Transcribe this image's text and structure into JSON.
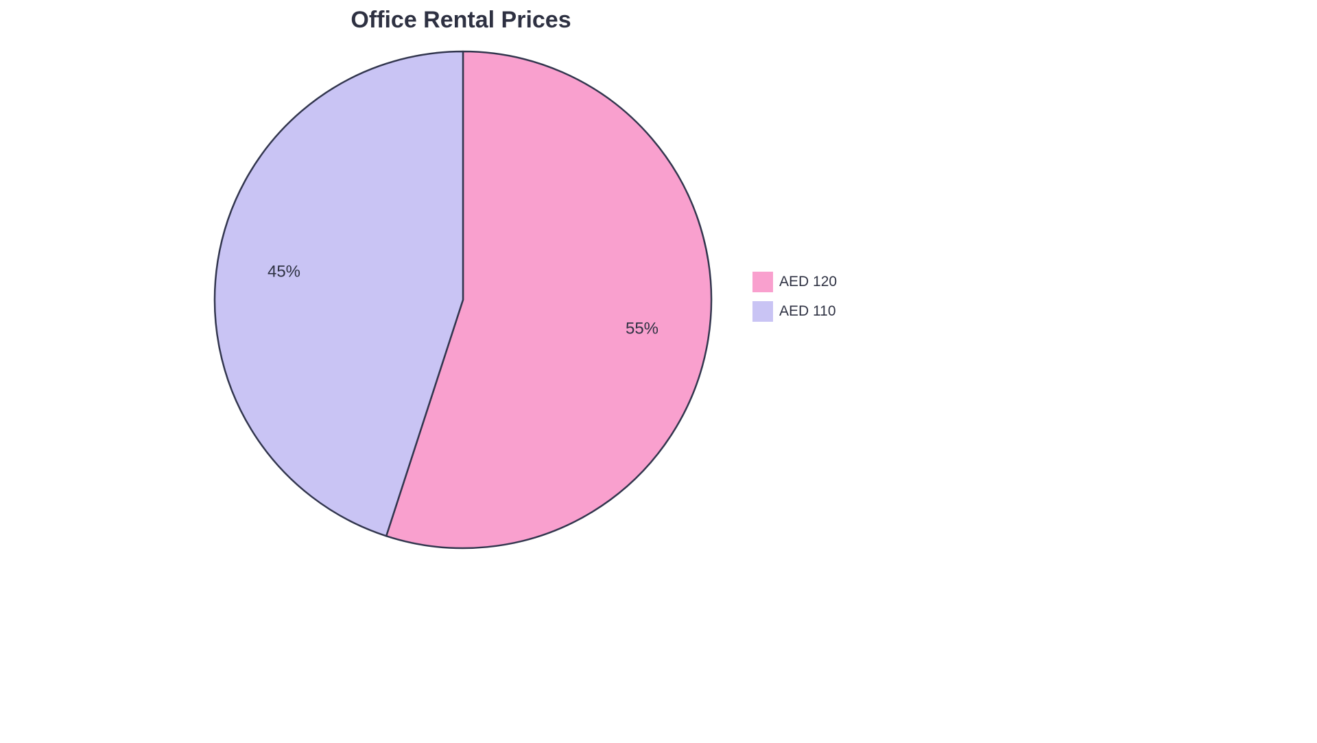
{
  "chart_data": {
    "type": "pie",
    "title": "Office Rental Prices",
    "labels": [
      "AED 120",
      "AED 110"
    ],
    "values": [
      55,
      45
    ],
    "slice_labels": [
      "55%",
      "45%"
    ],
    "colors": [
      "#F9A0CE",
      "#C9C4F4"
    ],
    "outline_color": "#32364E",
    "text_color": "#2E3142",
    "start_angle_deg": 0,
    "direction": "clockwise",
    "legend_position": "right"
  },
  "legend": {
    "items": [
      {
        "label": "AED 120",
        "color": "#F9A0CE"
      },
      {
        "label": "AED 110",
        "color": "#C9C4F4"
      }
    ]
  }
}
